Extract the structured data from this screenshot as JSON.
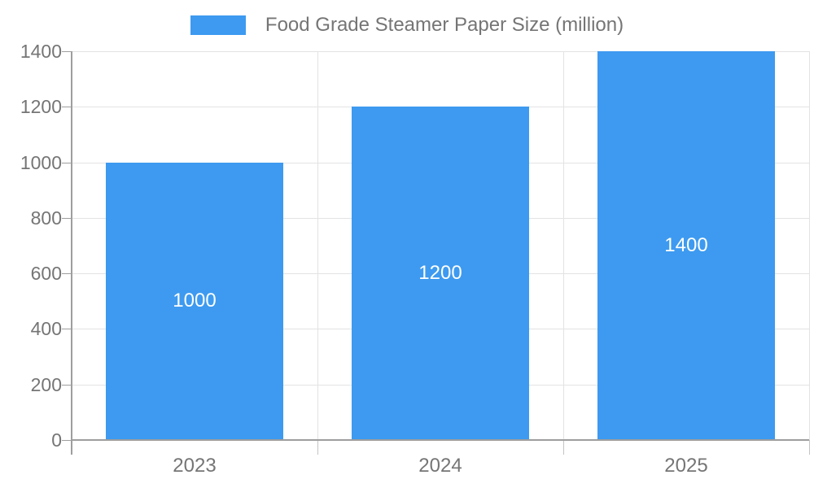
{
  "chart_data": {
    "type": "bar",
    "title": "Food Grade Steamer Paper Size (million)",
    "categories": [
      "2023",
      "2024",
      "2025"
    ],
    "series": [
      {
        "name": "Food Grade Steamer Paper Size (million)",
        "values": [
          1000,
          1200,
          1400
        ]
      }
    ],
    "data_labels": [
      "1000",
      "1200",
      "1400"
    ],
    "xlabel": "",
    "ylabel": "",
    "ylim": [
      0,
      1400
    ],
    "y_ticks": [
      0,
      200,
      400,
      600,
      800,
      1000,
      1200,
      1400
    ],
    "grid": true,
    "legend_position": "top-center",
    "colors": {
      "bar": "#3D9AF0",
      "axis_line": "#9E9E9E",
      "gridline": "#E3E3E3",
      "boundary_tick": "#C4C4C4",
      "tick_label_text": "#757575",
      "legend_text": "#757575",
      "data_label_text": "#FFFFFF",
      "background": "#FFFFFF"
    }
  },
  "legend": {
    "label": "Food Grade Steamer Paper Size (million)"
  }
}
